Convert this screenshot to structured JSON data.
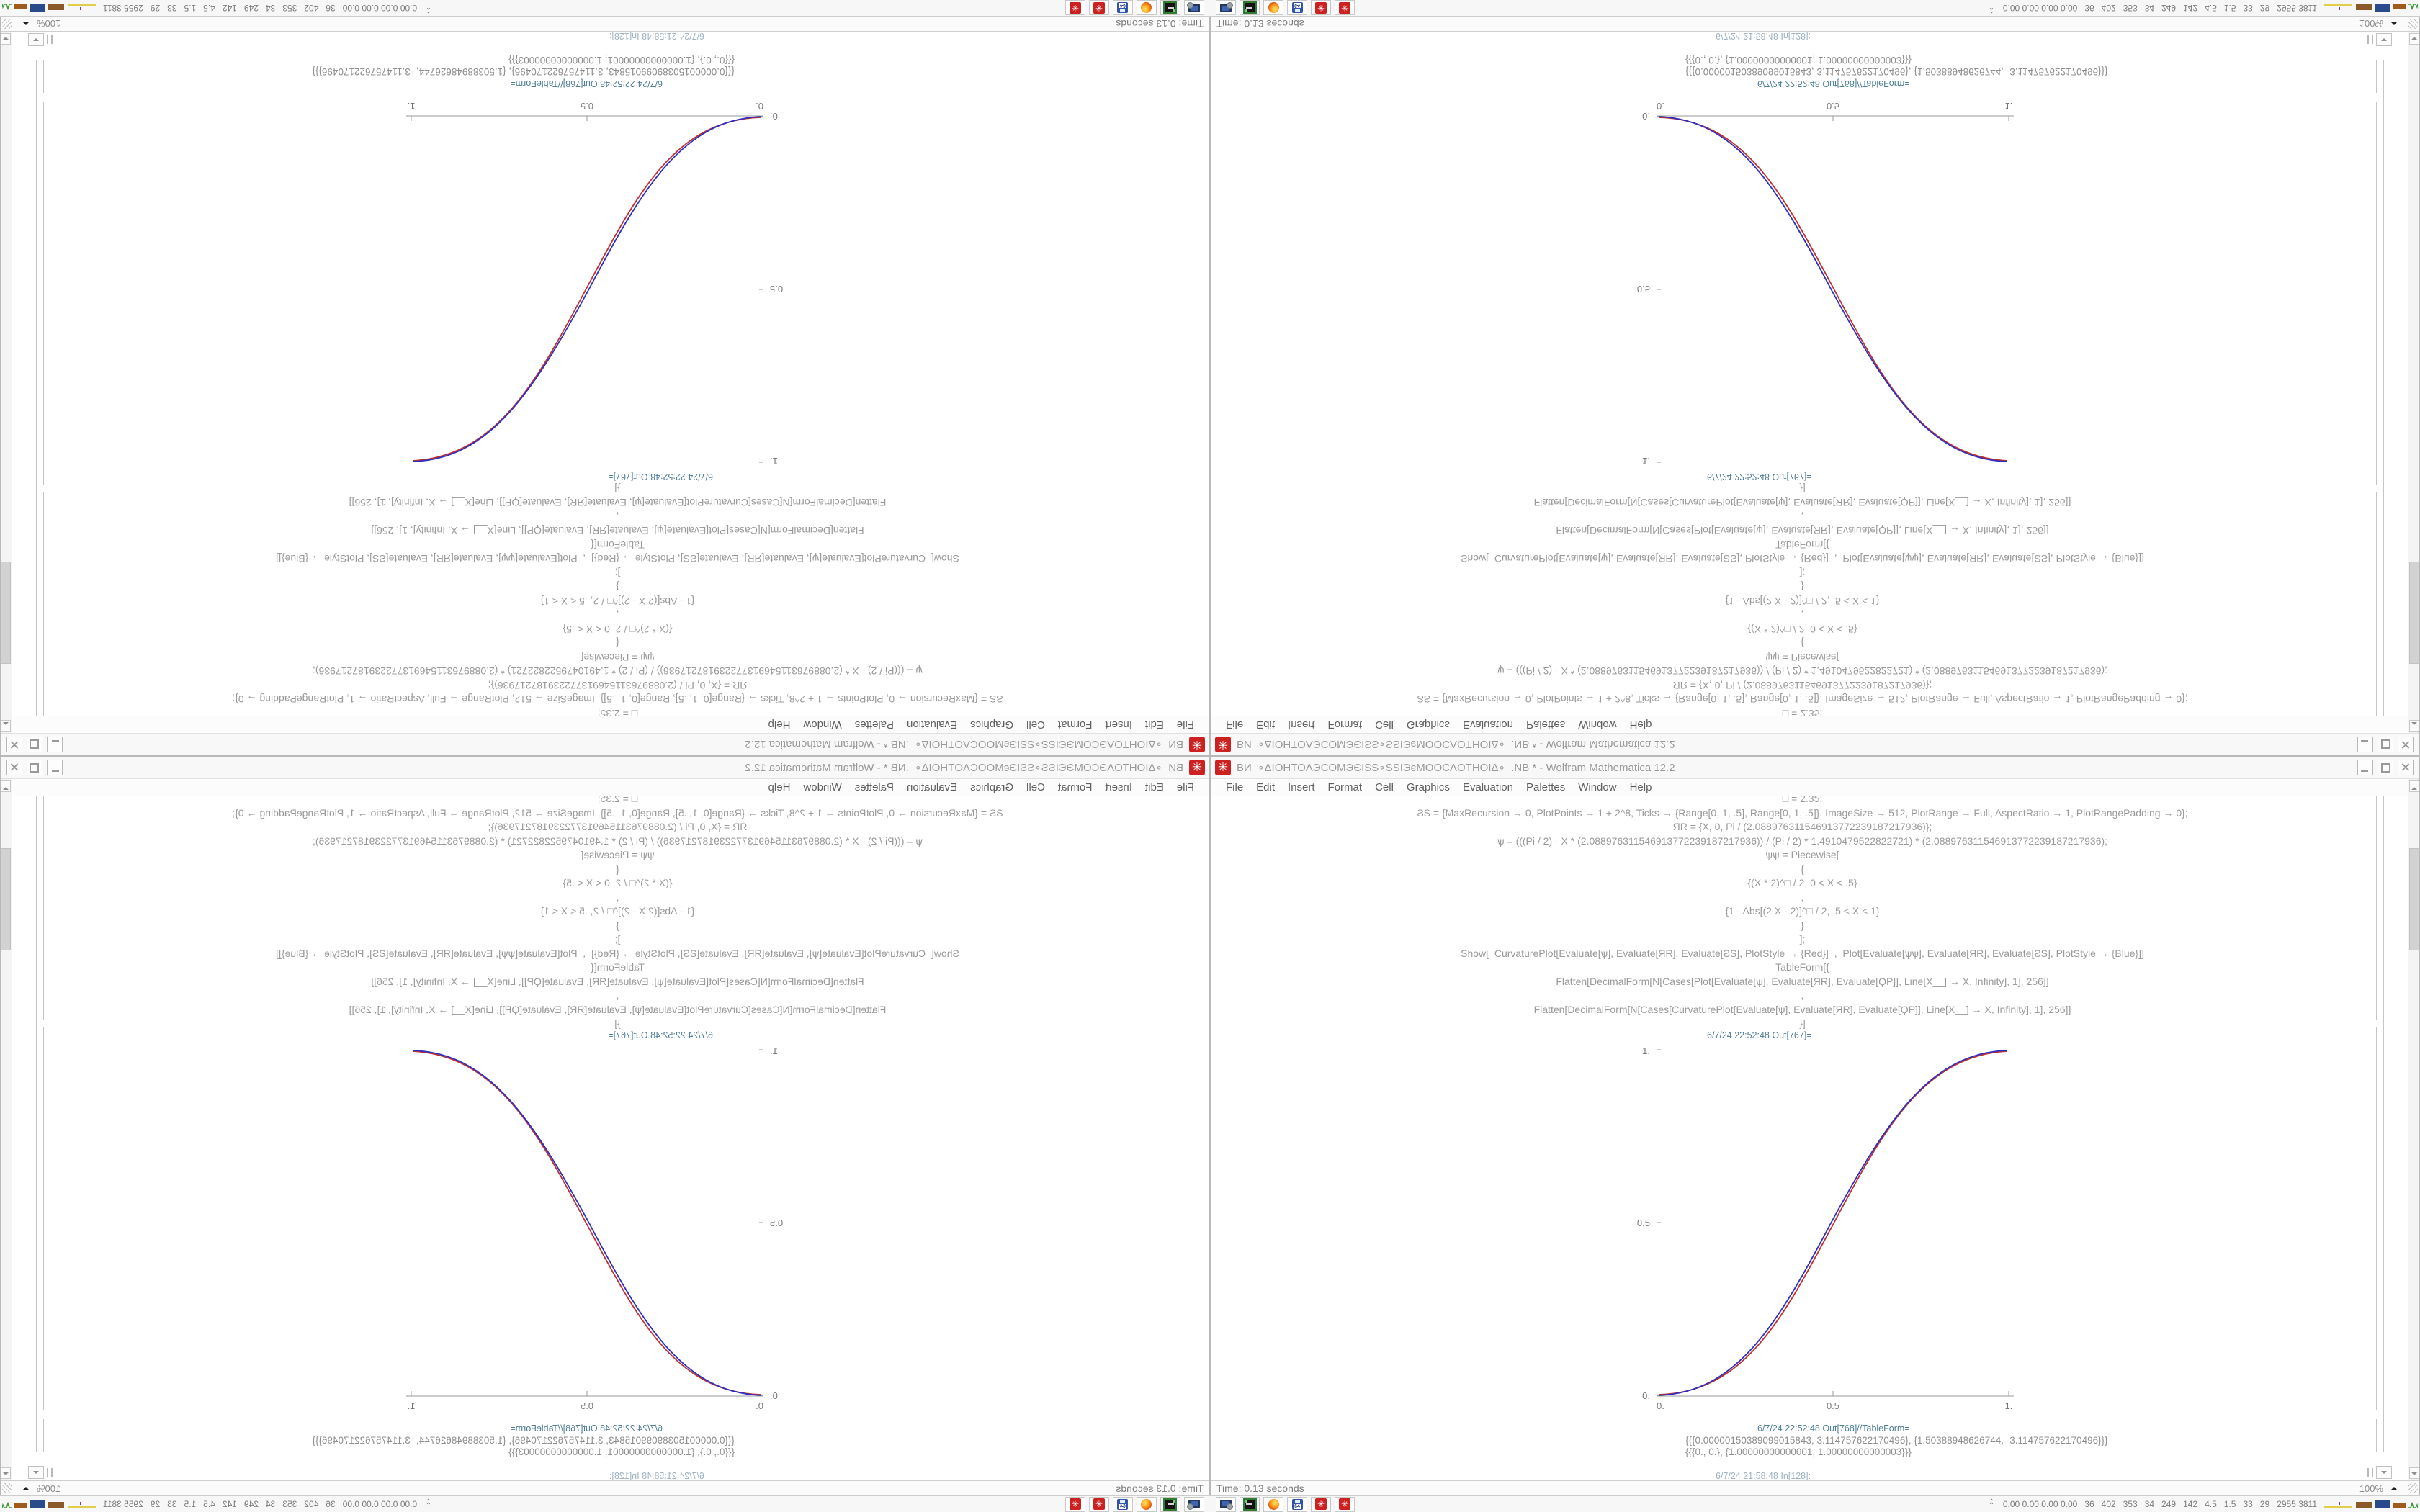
{
  "window": {
    "title": "ВИ_∘ΔIOHTOΛЭCOMЭЄIЅЅ∘ЅЅIЭєMOOCΛOTHOIΔ∘_.NB * - Wolfram Mathematica 12.2",
    "app_icon": "✳",
    "menu": [
      "File",
      "Edit",
      "Insert",
      "Format",
      "Cell",
      "Graphics",
      "Evaluation",
      "Palettes",
      "Window",
      "Help"
    ],
    "status_left": "Time: 0.13 seconds",
    "zoom_level": "100%"
  },
  "notebook": {
    "code_lines": [
      "□ = 2.35;",
      "ϨS = {MaxRecursion → 0, PlotPoints → 1 + 2^8, Ticks → {Range[0, 1, .5], Range[0, 1, .5]}, ImageSize → 512, PlotRange → Full, AspectRatio → 1, PlotRangePadding → 0};",
      "ЯR = {X, 0, Pi / (2.088976311546913772239187217936)};",
      "ѱ = (((Pi / 2) - X * (2.088976311546913772239187217936)) / (Pi / 2) * 1.4910479522822721) * (2.088976311546913772239187217936);",
      "ѱѱ = Piecewise[",
      "{",
      "{(X * 2)^□ / 2, 0 < X < .5}",
      ",",
      "{1 - Abs[(2 X - 2)]^□ / 2, .5 < X < 1}",
      "}",
      "];",
      "Show[  CurvaturePlot[Evaluate[ѱ], Evaluate[ЯR], Evaluate[ϨS], PlotStyle → {Red}]  ,  Plot[Evaluate[ѱѱ], Evaluate[ЯR], Evaluate[ϨS], PlotStyle → {Blue}]]",
      "TableForm[{",
      "Flatten[DecimalForm[N[Cases[Plot[Evaluate[ѱ], Evaluate[ЯR], Evaluate[ϘP]], Line[X__] → X, Infinity], 1], 256]]",
      ",",
      "Flatten[DecimalForm[N[Cases[CurvaturePlot[Evaluate[ѱ], Evaluate[ЯR], Evaluate[ϘP]], Line[X__] → X, Infinity], 1], 256]]",
      "}]"
    ],
    "out_label_plot": "6/7/24 22:52:48 Out[767]=",
    "out_label_table": "6/7/24 22:52:48 Out[768]//TableForm=",
    "in_label_partial": "6/7/24 21:58:48 In[128]:=",
    "table_lines": [
      "{{{0.00000150389099015843, 3.114757622170496}, {1.50388948626744, -3.114757622170496}}}",
      "{{{0., 0.}, {1.00000000000001, 1.00000000000003}}}"
    ]
  },
  "plot": {
    "type": "line",
    "x": [
      0,
      0.125,
      0.25,
      0.375,
      0.5,
      0.625,
      0.75,
      0.875,
      1
    ],
    "series": [
      {
        "name": "CurvaturePlot (Red)",
        "color": "#c03030",
        "values": [
          0,
          0.02,
          0.12,
          0.3,
          0.5,
          0.7,
          0.88,
          0.98,
          1
        ]
      },
      {
        "name": "Plot (Blue)",
        "color": "#3030c0",
        "values": [
          0,
          0.02,
          0.12,
          0.3,
          0.5,
          0.7,
          0.88,
          0.98,
          1
        ]
      }
    ],
    "xticks": [
      "0.",
      "0.5",
      "1."
    ],
    "yticks": [
      "1.",
      "0.5",
      "0."
    ],
    "xlim": [
      0,
      1
    ],
    "ylim": [
      0,
      1
    ],
    "grid": false,
    "legend": "none"
  },
  "taskbar": {
    "icons": [
      "vm-monitor",
      "disk-utility",
      "firefox",
      "disk-imager-64",
      "mathematica",
      "mathematica"
    ],
    "floppy_label": "64",
    "tray_text": "0.00 0.00 0.00 0.00   36   402   353   34   249   142   4.5   1.5   33   29   2955 3811"
  },
  "layout_note": {
    "quadrants": [
      "top-left: rotated 180°",
      "top-right: flipped vertically",
      "bottom-left: mirrored horizontally",
      "bottom-right: normal"
    ]
  }
}
